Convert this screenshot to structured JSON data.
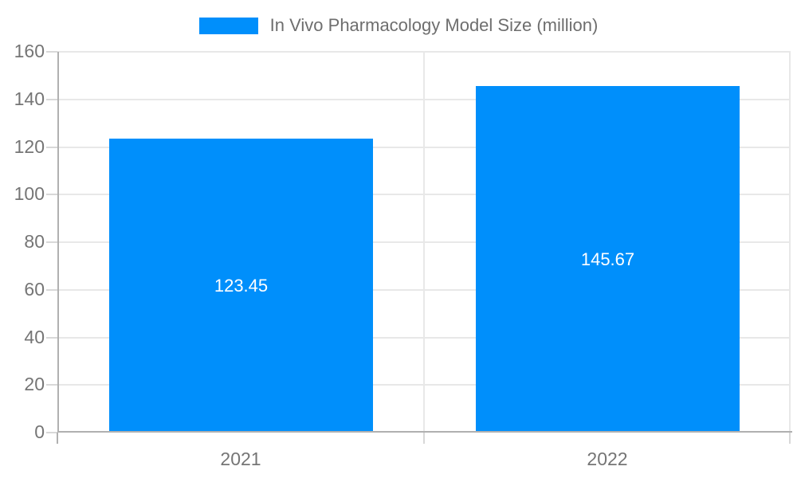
{
  "legend": {
    "label": "In Vivo Pharmacology Model Size (million)"
  },
  "chart_data": {
    "type": "bar",
    "title": "In Vivo Pharmacology Model Size (million)",
    "categories": [
      "2021",
      "2022"
    ],
    "series": [
      {
        "name": "In Vivo Pharmacology Model Size (million)",
        "values": [
          123.45,
          145.67
        ]
      }
    ],
    "value_labels": [
      "123.45",
      "145.67"
    ],
    "xlabel": "",
    "ylabel": "",
    "ylim": [
      0,
      160
    ],
    "yticks": [
      0,
      20,
      40,
      60,
      80,
      100,
      120,
      140,
      160
    ],
    "grid": true,
    "legend_position": "top",
    "value_label_position": "inside-middle"
  },
  "colors": {
    "bar": "#008FFB",
    "axis_line": "#b0b0b0",
    "grid_line": "#e8e8e8",
    "tick_line": "#d8d8d8",
    "axis_text": "#757575",
    "legend_text": "#6e6e6e",
    "value_text": "#ffffff",
    "background": "#ffffff"
  }
}
